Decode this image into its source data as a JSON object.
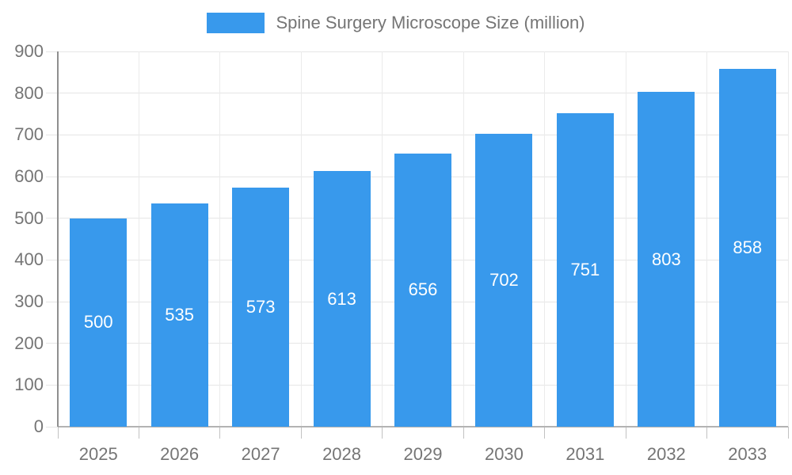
{
  "chart_data": {
    "type": "bar",
    "title": "Spine Surgery Microscope Size (million)",
    "categories": [
      "2025",
      "2026",
      "2027",
      "2028",
      "2029",
      "2030",
      "2031",
      "2032",
      "2033"
    ],
    "values": [
      500,
      535,
      573,
      613,
      656,
      702,
      751,
      803,
      858
    ],
    "xlabel": "",
    "ylabel": "",
    "ylim": [
      0,
      900
    ],
    "ytick_step": 100,
    "ytick_labels": [
      "0",
      "100",
      "200",
      "300",
      "400",
      "500",
      "600",
      "700",
      "800",
      "900"
    ],
    "grid": true,
    "legend_position": "top-center",
    "value_labels": "inside-center",
    "colors": {
      "bar": "#3899EC",
      "value_label": "#ffffff",
      "axis_text": "#757575",
      "grid_line": "#e6e6e6",
      "vgrid_line": "#ebebeb",
      "y_axis_line": "#8f8f8f",
      "x_axis_line": "#b3b3b3",
      "tick": "#c2c2c2",
      "background": "#ffffff"
    }
  }
}
